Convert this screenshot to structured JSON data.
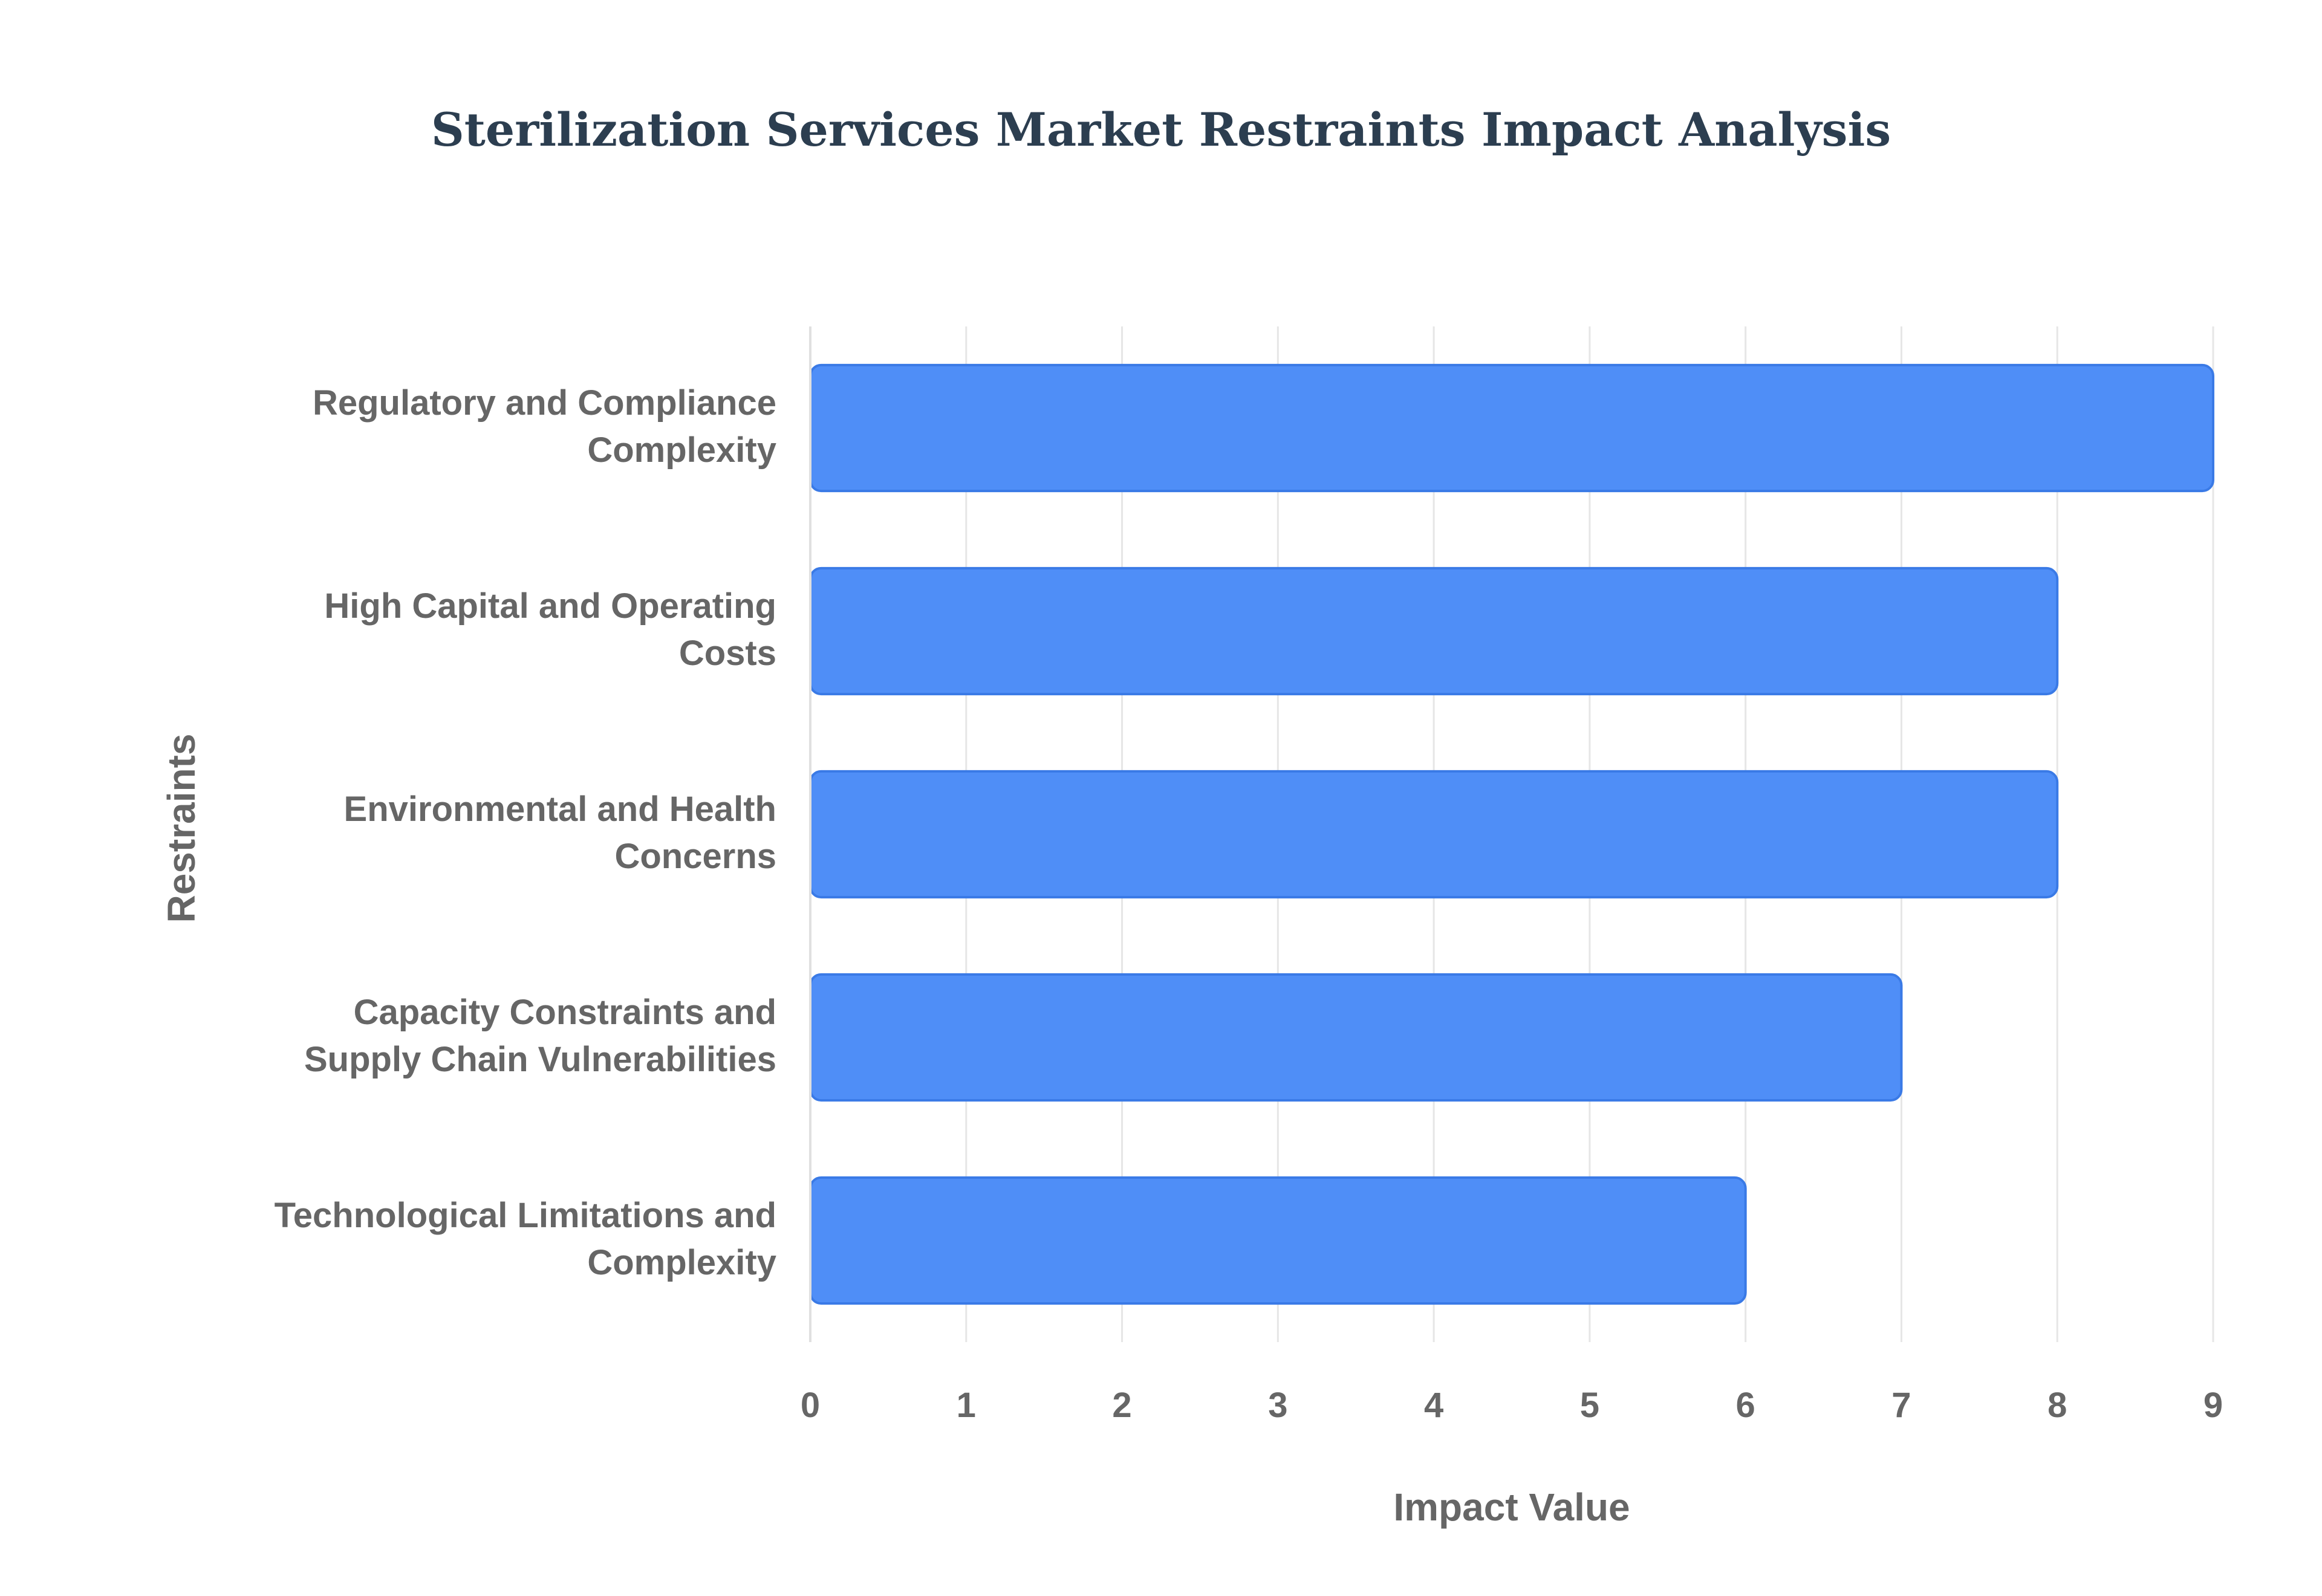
{
  "chart_data": {
    "type": "bar",
    "orientation": "horizontal",
    "title": "Sterilization Services Market Restraints Impact Analysis",
    "xlabel": "Impact Value",
    "ylabel": "Restraints",
    "categories": [
      [
        "Regulatory and Compliance",
        "Complexity"
      ],
      [
        "High Capital and Operating",
        "Costs"
      ],
      [
        "Environmental and Health",
        "Concerns"
      ],
      [
        "Capacity Constraints and",
        "Supply Chain Vulnerabilities"
      ],
      [
        "Technological Limitations and",
        "Complexity"
      ]
    ],
    "values": [
      9,
      8,
      8,
      7,
      6
    ],
    "xlim": [
      0,
      9
    ],
    "xticks": [
      "0",
      "1",
      "2",
      "3",
      "4",
      "5",
      "6",
      "7",
      "8",
      "9"
    ],
    "grid": true,
    "legend": "none",
    "colors": {
      "bar_fill": "#4f8ef7",
      "bar_stroke": "#3a7ae6",
      "grid": "#e6e6e6",
      "text": "#666666",
      "title": "#2c3e50"
    }
  }
}
